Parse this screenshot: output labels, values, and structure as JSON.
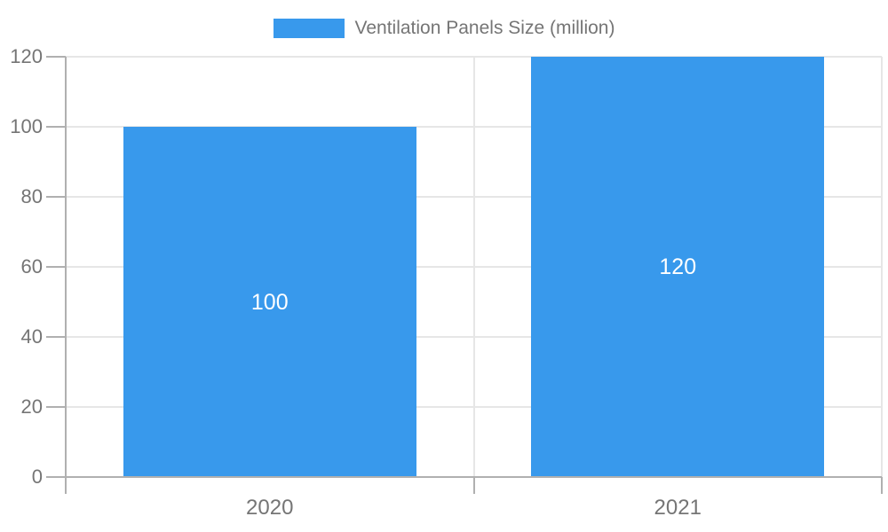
{
  "legend": {
    "label": "Ventilation Panels Size (million)",
    "swatch_color": "#3899ec"
  },
  "chart_data": {
    "type": "bar",
    "title": "Ventilation Panels Size (million)",
    "categories": [
      "2020",
      "2021"
    ],
    "series": [
      {
        "name": "Ventilation Panels Size (million)",
        "color": "#3899ec",
        "values": [
          100,
          120
        ]
      }
    ],
    "value_labels": [
      "100",
      "120"
    ],
    "xlabel": "",
    "ylabel": "",
    "ylim": [
      0,
      120
    ],
    "ytick_step": 20,
    "ytick_labels": [
      "0",
      "20",
      "40",
      "60",
      "80",
      "100",
      "120"
    ],
    "grid": true,
    "legend_position": "top",
    "colors": {
      "bar": "#3899ec",
      "value_text": "#ffffff",
      "axis_text": "#757575",
      "axis_line": "#b0b0b0",
      "grid_line": "#e6e6e6",
      "background": "#ffffff"
    }
  }
}
